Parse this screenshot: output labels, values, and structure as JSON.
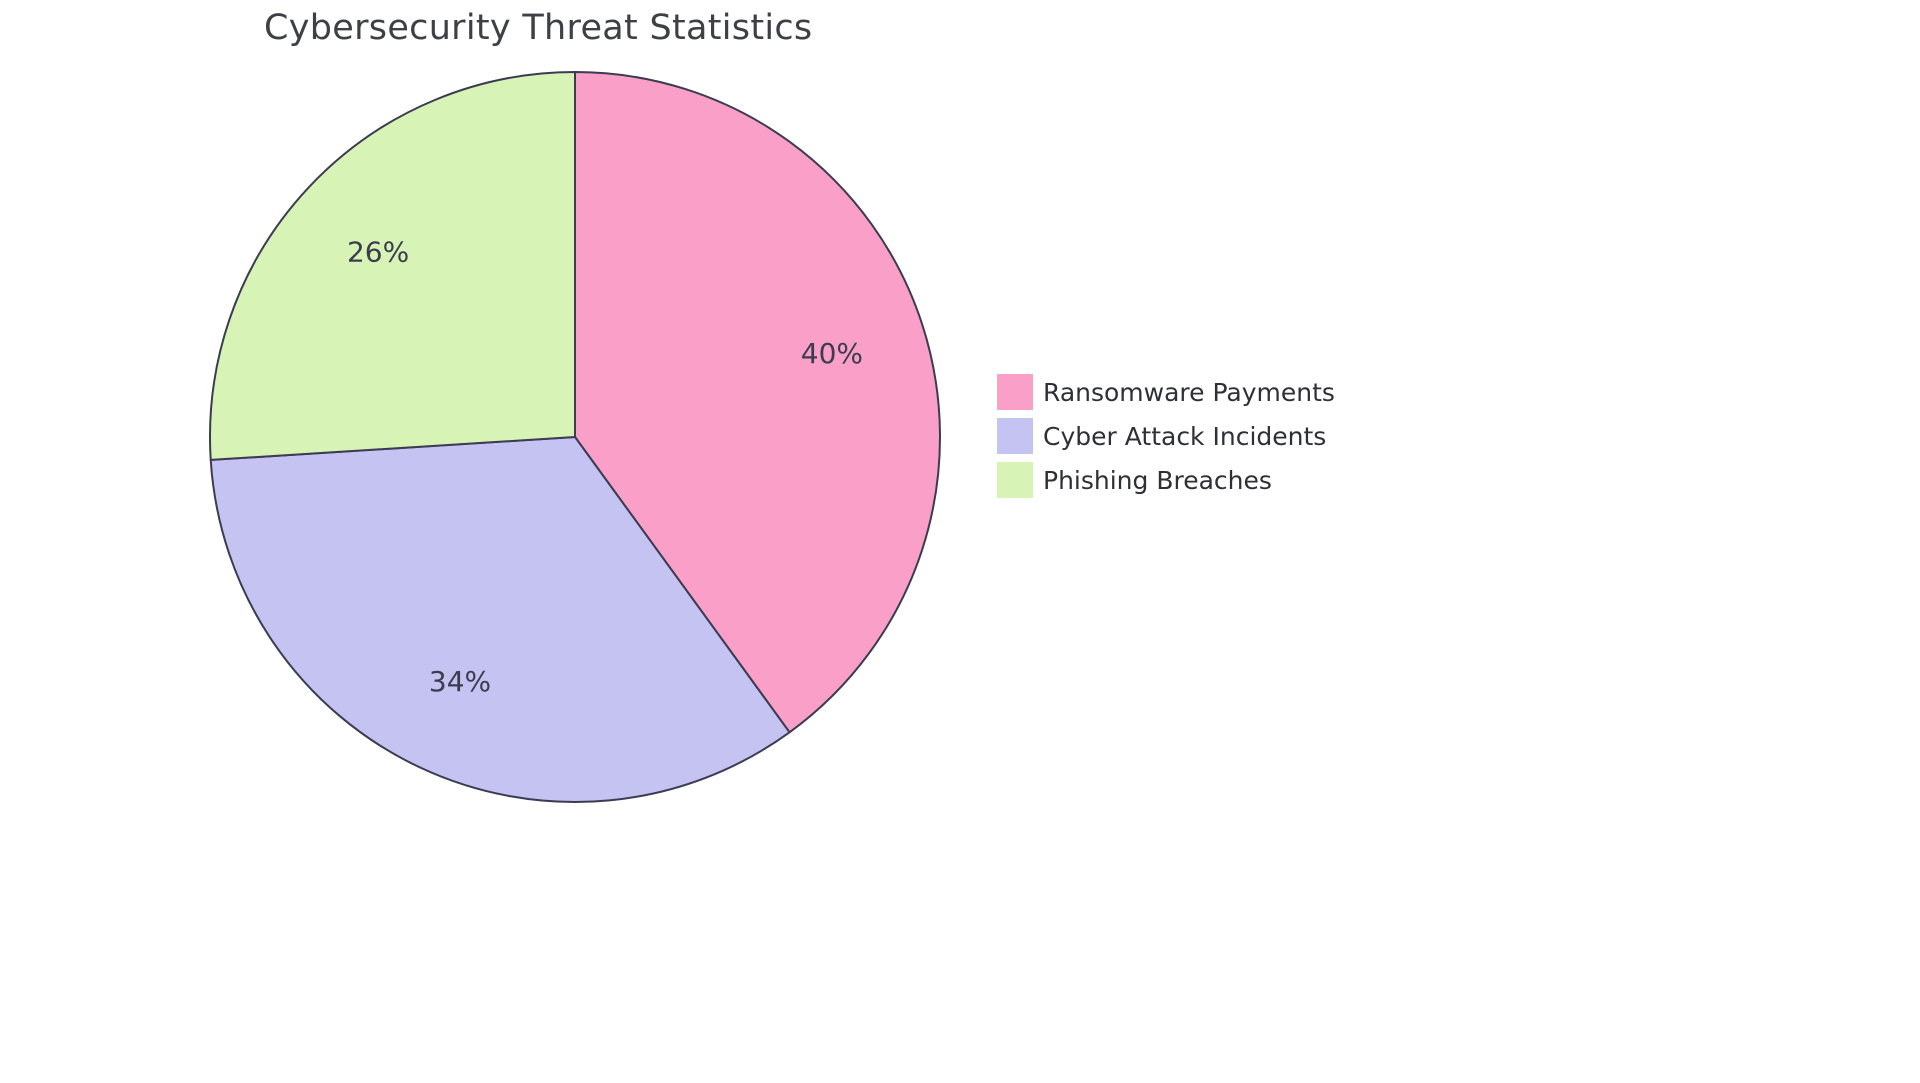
{
  "chart_data": {
    "type": "pie",
    "title": "Cybersecurity Threat Statistics",
    "slices": [
      {
        "label": "Ransomware Payments",
        "value": 40,
        "pct_label": "40%",
        "color": "#FA9FC8"
      },
      {
        "label": "Cyber Attack Incidents",
        "value": 34,
        "pct_label": "34%",
        "color": "#C5C3F1"
      },
      {
        "label": "Phishing Breaches",
        "value": 26,
        "pct_label": "26%",
        "color": "#D7F4B6"
      }
    ],
    "start_angle_deg": 0,
    "direction": "clockwise",
    "legend_position": "right",
    "stroke_color": "#3B3B52",
    "label_color": "#3C3C4E",
    "title_color": "#3F4046",
    "background": "#FFFFFF"
  }
}
